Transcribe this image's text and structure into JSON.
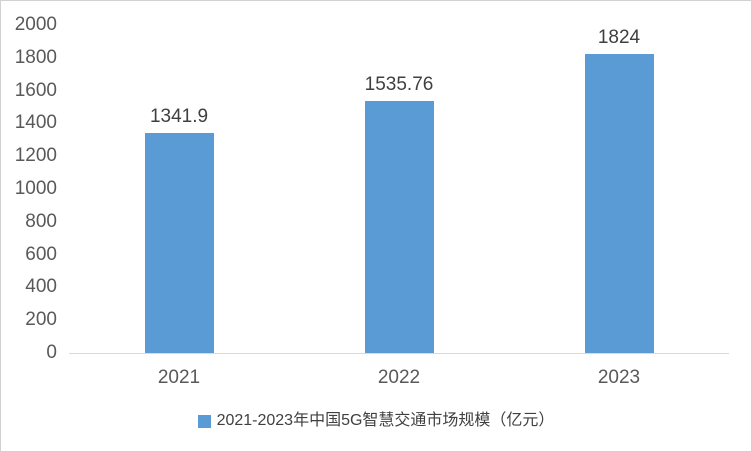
{
  "chart_data": {
    "type": "bar",
    "title": "",
    "xlabel": "",
    "ylabel": "",
    "categories": [
      "2021",
      "2022",
      "2023"
    ],
    "series": [
      {
        "name": "2021-2023年中国5G智慧交通市场规模（亿元）",
        "values": [
          1341.9,
          1535.76,
          1824
        ]
      }
    ],
    "data_labels": [
      "1341.9",
      "1535.76",
      "1824"
    ],
    "ylim": [
      0,
      2000
    ],
    "yticks": [
      0,
      200,
      400,
      600,
      800,
      1000,
      1200,
      1400,
      1600,
      1800,
      2000
    ],
    "grid": false,
    "legend_position": "bottom",
    "colors": {
      "bar": "#5B9BD5",
      "axis_line": "#d9d9d9",
      "tick_text": "#595959",
      "data_label_text": "#404040",
      "legend_marker": "#5B9BD5"
    }
  }
}
